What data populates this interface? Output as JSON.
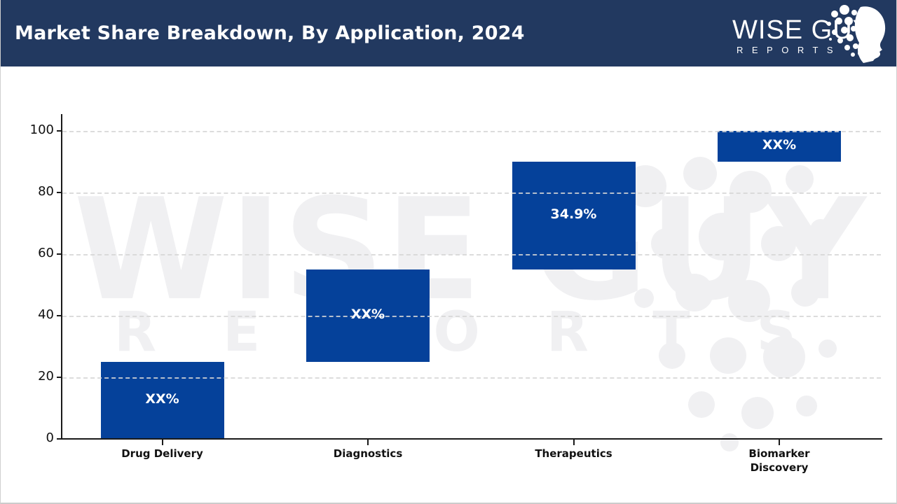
{
  "header": {
    "title": "Market Share Breakdown, By Application, 2024",
    "logo": {
      "line1": "WISE GUY",
      "line2": "REPORTS"
    }
  },
  "watermark": {
    "line1": "WISE GUY",
    "line2": "REPORTS"
  },
  "chart_data": {
    "type": "bar",
    "subtype": "floating-waterfall",
    "title": "Market Share Breakdown, By Application, 2024",
    "categories": [
      "Drug Delivery",
      "Diagnostics",
      "Therapeutics",
      "Biomarker Discovery"
    ],
    "category_lines": [
      [
        "Drug Delivery"
      ],
      [
        "Diagnostics"
      ],
      [
        "Therapeutics"
      ],
      [
        "Biomarker",
        "Discovery"
      ]
    ],
    "segments": [
      {
        "category": "Drug Delivery",
        "start": 0,
        "end": 25.1,
        "label": "XX%"
      },
      {
        "category": "Diagnostics",
        "start": 25.1,
        "end": 55.1,
        "label": "XX%"
      },
      {
        "category": "Therapeutics",
        "start": 55.1,
        "end": 90,
        "label": "34.9%"
      },
      {
        "category": "Biomarker Discovery",
        "start": 90,
        "end": 100,
        "label": "XX%"
      }
    ],
    "values": [
      25.1,
      30,
      34.9,
      10
    ],
    "yticks": [
      0,
      20,
      40,
      60,
      80,
      100
    ],
    "ylim": [
      0,
      100
    ],
    "xlabel": "",
    "ylabel": "",
    "grid": "horizontal-dashed",
    "legend": "none",
    "bar_color": "#05419a",
    "bar_label_color": "#ffffff",
    "header_color": "#223960"
  }
}
